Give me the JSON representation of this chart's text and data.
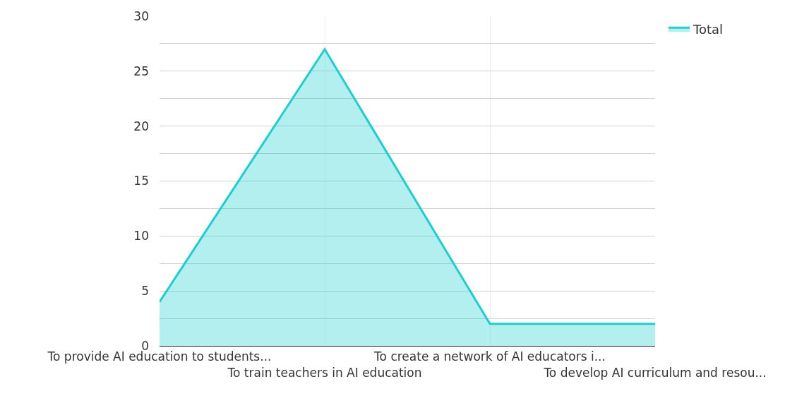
{
  "chart_data": {
    "type": "area",
    "categories": [
      "To provide AI education to students...",
      "To train teachers in AI education",
      "To create a network of AI educators i...",
      "To develop AI curriculum and resou..."
    ],
    "series": [
      {
        "name": "Total",
        "color": "#1ccfcf",
        "values": [
          4,
          27,
          2,
          2
        ]
      }
    ],
    "ylim": [
      0,
      30
    ],
    "yticks": [
      0,
      {
        "value": 2.5,
        "label": null
      },
      5,
      {
        "value": 7.5,
        "label": null
      },
      10,
      {
        "value": 12.5,
        "label": null
      },
      15,
      {
        "value": 17.5,
        "label": null
      },
      20,
      {
        "value": 22.5,
        "label": null
      },
      25,
      {
        "value": 27.5,
        "label": null
      },
      30
    ],
    "grid": true,
    "legend": "top right",
    "marker": "none"
  }
}
